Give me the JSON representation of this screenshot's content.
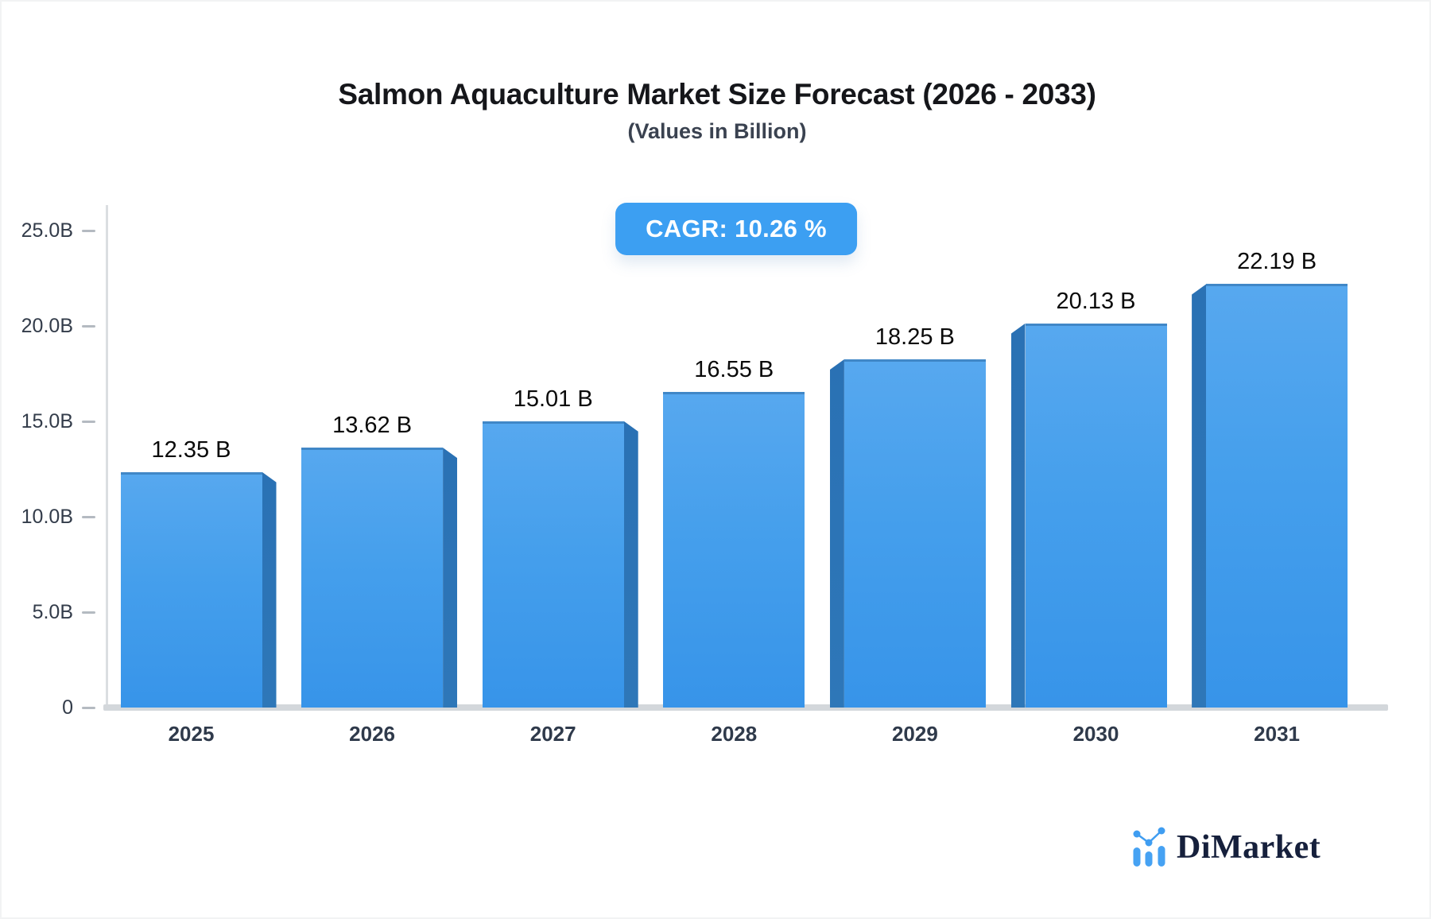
{
  "header": {
    "title": "Salmon Aquaculture Market Size Forecast (2026 - 2033)",
    "subtitle": "(Values in Billion)"
  },
  "badge": {
    "label": "CAGR: 10.26 %"
  },
  "chart_data": {
    "type": "bar",
    "categories": [
      "2025",
      "2026",
      "2027",
      "2028",
      "2029",
      "2030",
      "2031"
    ],
    "values": [
      12.35,
      13.62,
      15.01,
      16.55,
      18.25,
      20.13,
      22.19
    ],
    "data_labels": [
      "12.35 B",
      "13.62 B",
      "15.01 B",
      "16.55 B",
      "18.25 B",
      "20.13 B",
      "22.19 B"
    ],
    "title": "Salmon Aquaculture Market Size Forecast (2026 - 2033)",
    "subtitle": "(Values in Billion)",
    "xlabel": "",
    "ylabel": "",
    "ylim": [
      0,
      25
    ],
    "ytick_labels": [
      "0",
      "5.0B",
      "10.0B",
      "15.0B",
      "20.0B",
      "25.0B"
    ],
    "grid": false,
    "legend_position": "none",
    "bar_color": "#3f9ceb",
    "bar_side_color": "#2d76b8",
    "effect": "3d-perspective"
  },
  "logo": {
    "text": "DiMarket",
    "icon": "mini-bar-chart-with-trend-dots",
    "icon_color": "#3f9df1",
    "text_color": "#16203c"
  },
  "colors": {
    "badge_bg": "#3c9ff2",
    "badge_text": "#ffffff",
    "axis_line": "#d3d7db",
    "tick_text": "#333c4a",
    "title_text": "#15161a"
  }
}
